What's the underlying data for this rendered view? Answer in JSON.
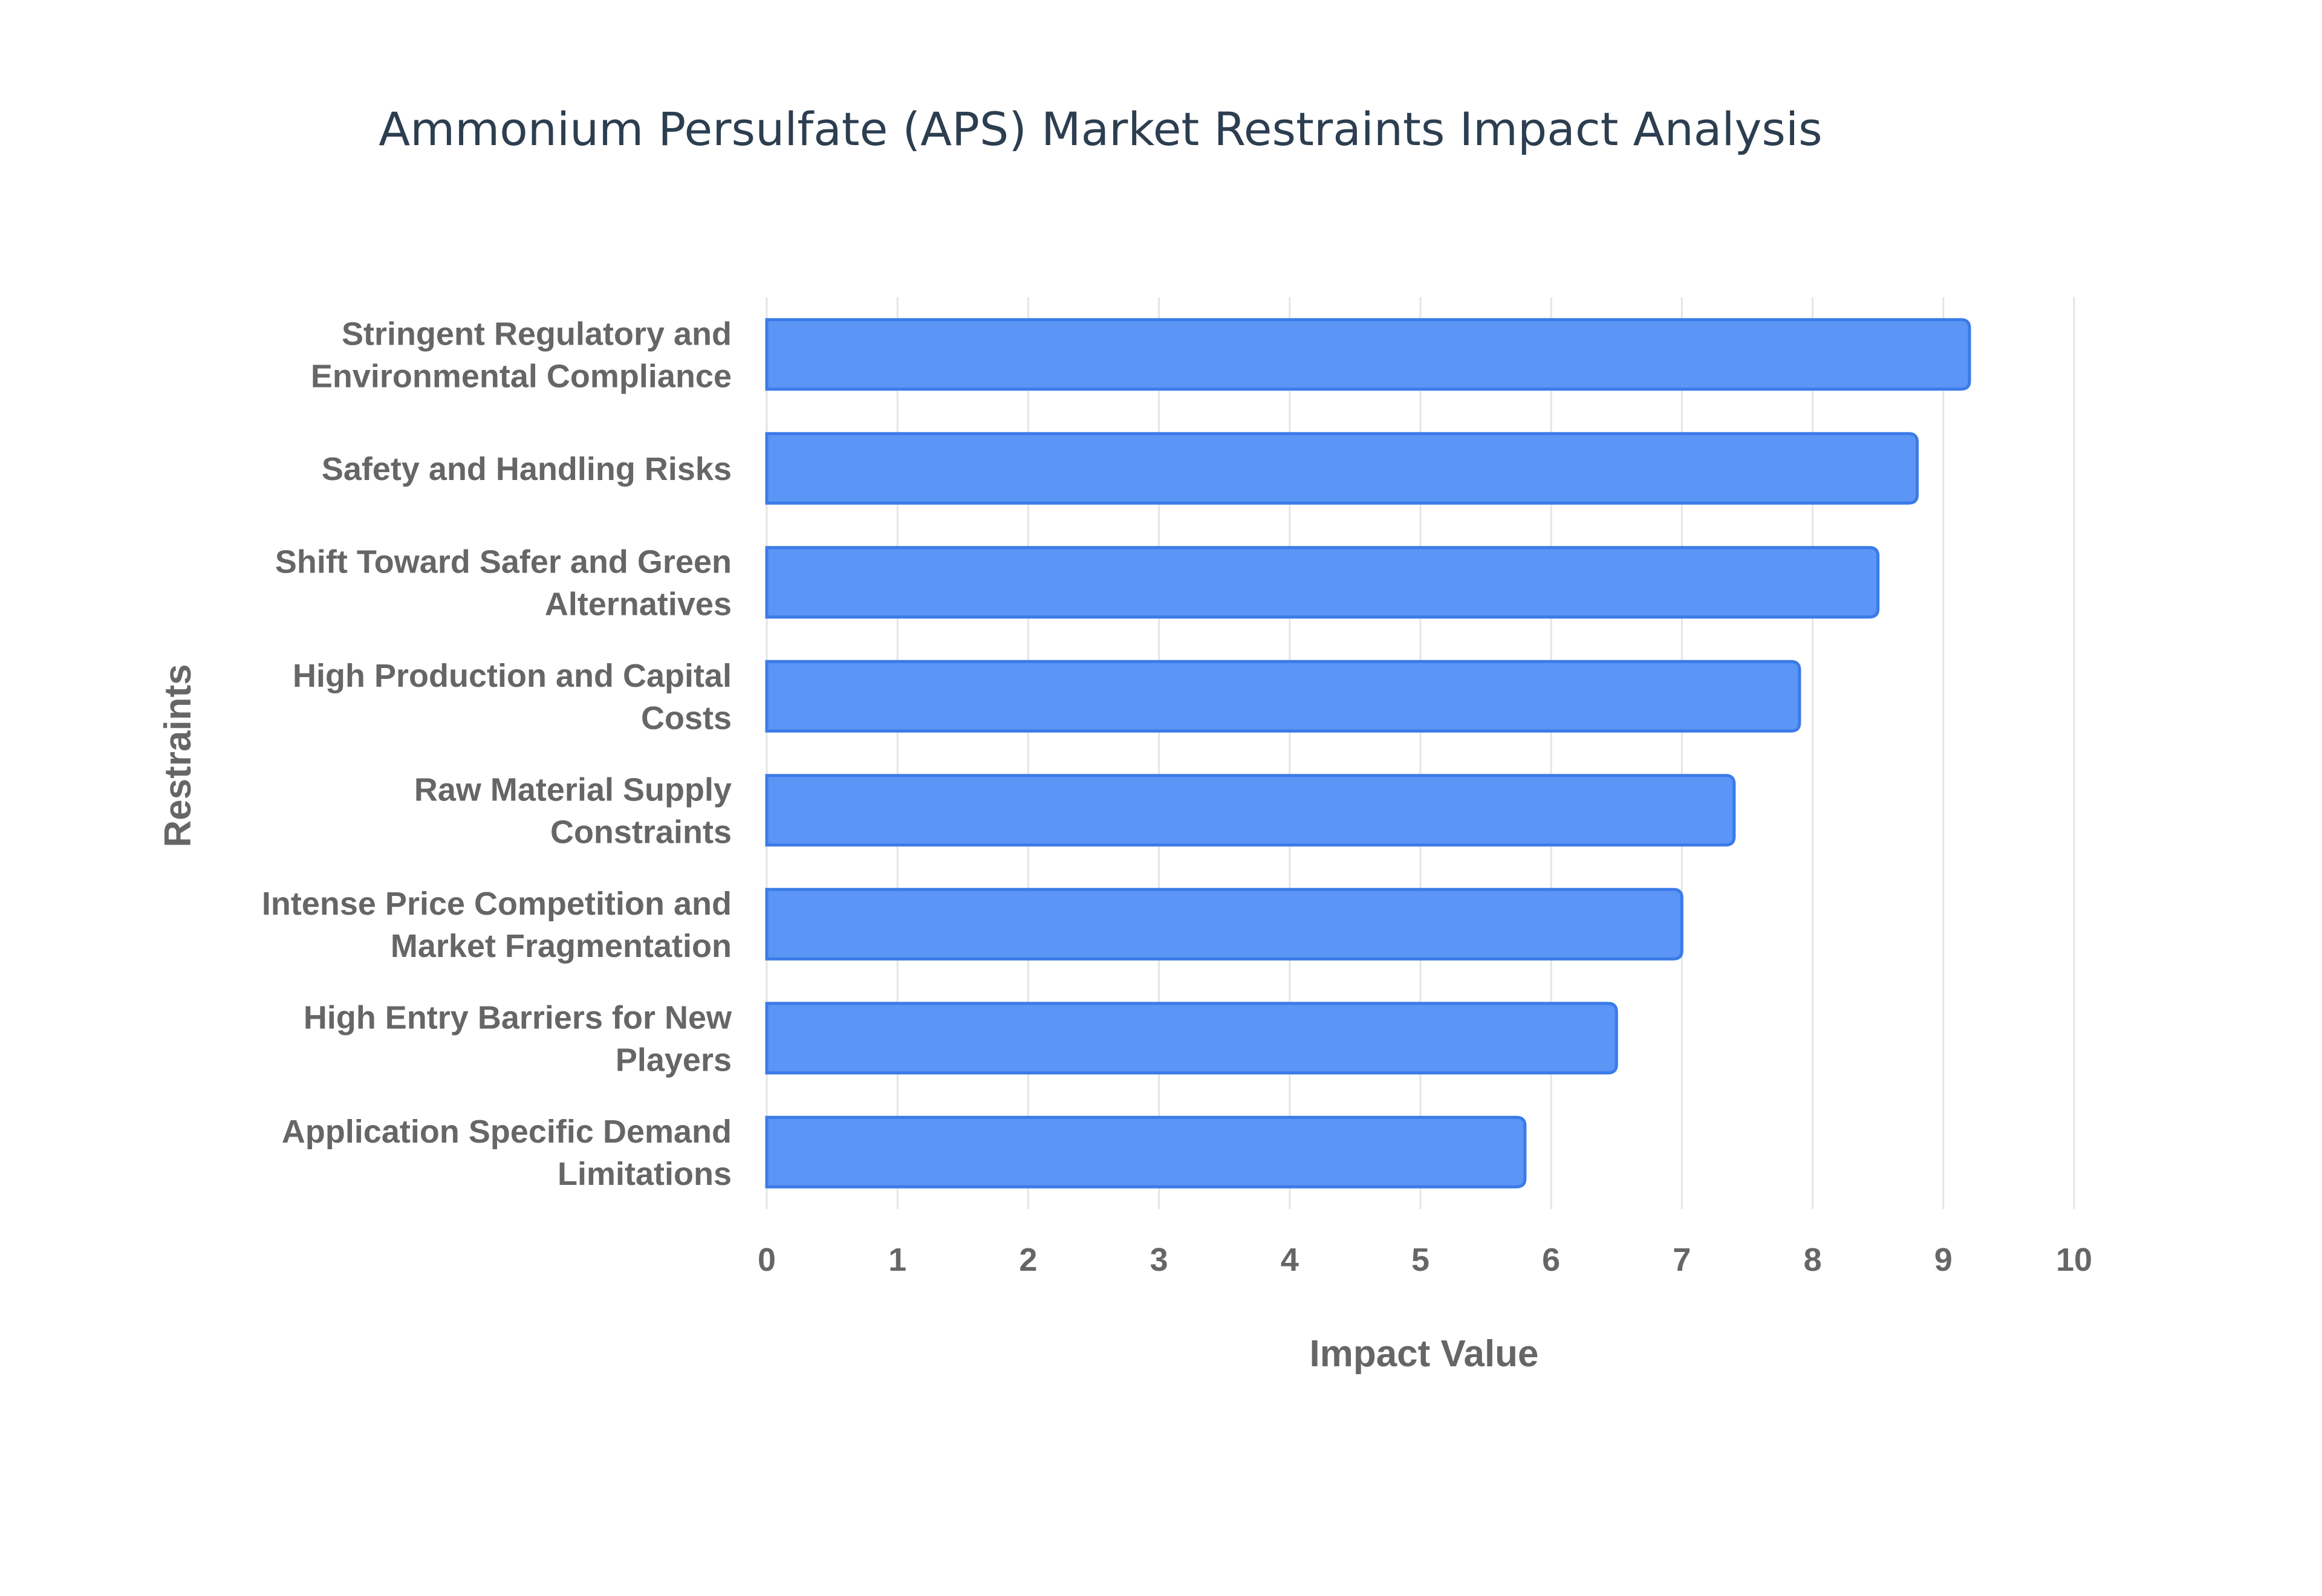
{
  "chart_data": {
    "type": "bar",
    "orientation": "horizontal",
    "title": "Ammonium Persulfate (APS) Market Restraints Impact Analysis",
    "xlabel": "Impact Value",
    "ylabel": "Restraints",
    "xlim": [
      0,
      10
    ],
    "xticks": [
      "0",
      "1",
      "2",
      "3",
      "4",
      "5",
      "6",
      "7",
      "8",
      "9",
      "10"
    ],
    "grid": true,
    "categories": [
      [
        "Stringent Regulatory and",
        "Environmental Compliance"
      ],
      [
        "Safety and Handling Risks"
      ],
      [
        "Shift Toward Safer and Green",
        "Alternatives"
      ],
      [
        "High Production and Capital",
        "Costs"
      ],
      [
        "Raw Material Supply",
        "Constraints"
      ],
      [
        "Intense Price Competition and",
        "Market Fragmentation"
      ],
      [
        "High Entry Barriers for New",
        "Players"
      ],
      [
        "Application Specific Demand",
        "Limitations"
      ]
    ],
    "values": [
      9.2,
      8.8,
      8.5,
      7.9,
      7.4,
      7.0,
      6.5,
      5.8
    ],
    "colors": {
      "bar_fill": "#5b95f5",
      "bar_stroke": "#3b7be8"
    }
  }
}
